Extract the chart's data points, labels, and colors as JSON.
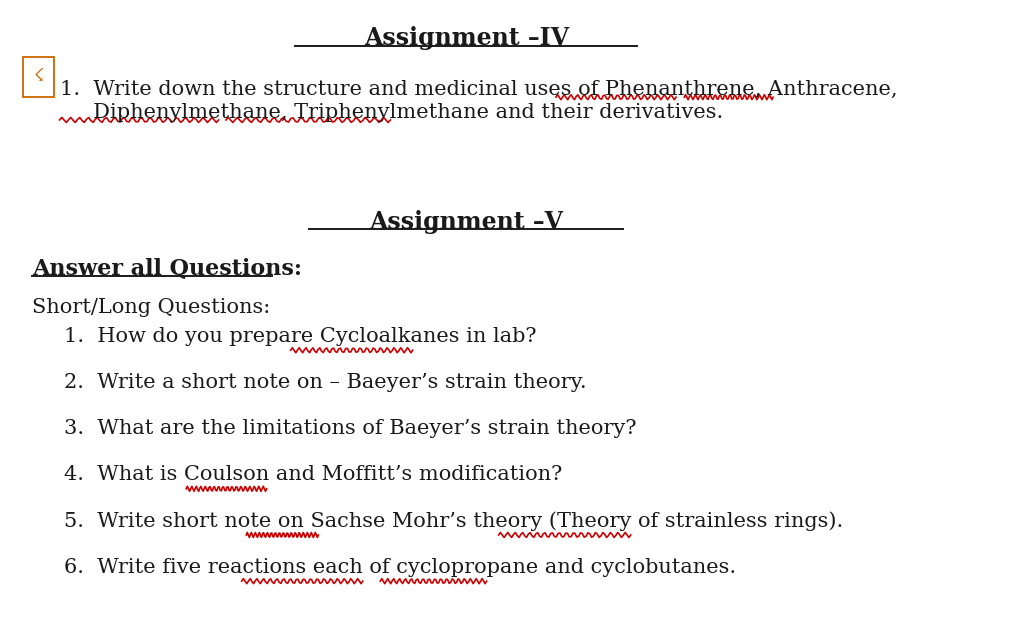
{
  "background_color": "#ffffff",
  "title1": "Assignment –IV",
  "title2": "Assignment –V",
  "section_label": "Answer all Questions",
  "subsection_label": "Short/Long Questions:",
  "q1_line1": "1.  Write down the structure and medicinal uses of Phenanthrene, Anthracene,",
  "q1_line2": "     Diphenylmethane, Triphenylmethane and their derivatives.",
  "questions": [
    "1.  How do you prepare Cycloalkanes in lab?",
    "2.  Write a short note on – Baeyer’s strain theory.",
    "3.  What are the limitations of Baeyer’s strain theory?",
    "4.  What is Coulson and Moffitt’s modification?",
    "5.  Write short note on Sachse Mohr’s theory (Theory of strainless rings).",
    "6.  Write five reactions each of cyclopropane and cyclobutanes."
  ],
  "font_size_title": 17,
  "font_size_body": 15,
  "text_color": "#1a1a1a",
  "underline_color": "#1a1a1a",
  "squiggle_color": "#cc0000",
  "title1_underline": [
    0.315,
    0.685
  ],
  "title2_underline": [
    0.33,
    0.67
  ],
  "section_underline": [
    0.03,
    0.29
  ],
  "icon_color": "#cc6600"
}
